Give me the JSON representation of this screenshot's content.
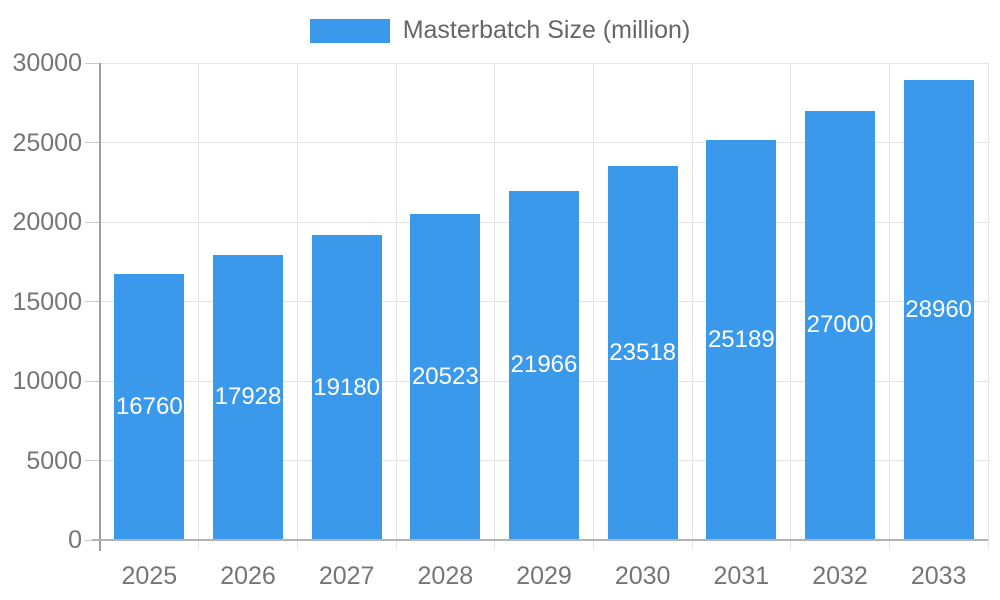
{
  "legend": {
    "label": "Masterbatch Size (million)"
  },
  "chart_data": {
    "type": "bar",
    "title": "",
    "categories": [
      "2025",
      "2026",
      "2027",
      "2028",
      "2029",
      "2030",
      "2031",
      "2032",
      "2033"
    ],
    "series": [
      {
        "name": "Masterbatch Size (million)",
        "values": [
          16760,
          17928,
          19180,
          20523,
          21966,
          23518,
          25189,
          27000,
          28960
        ]
      }
    ],
    "xlabel": "",
    "ylabel": "",
    "ylim": [
      0,
      30000
    ],
    "yticks": [
      0,
      5000,
      10000,
      15000,
      20000,
      25000,
      30000
    ],
    "grid": true,
    "legend_position": "top",
    "bar_labels_inside": true,
    "colors": {
      "bar": "#3B99EC",
      "grid": "#E4E4E4",
      "y_axis_line": "#9E9E9E",
      "x_axis_line": "#B3B3B3",
      "tick": "#C9C9C9",
      "axis_text": "#757575",
      "legend_text": "#666666",
      "bar_label_text": "#FFFFFF",
      "background": "#FFFFFF"
    }
  }
}
